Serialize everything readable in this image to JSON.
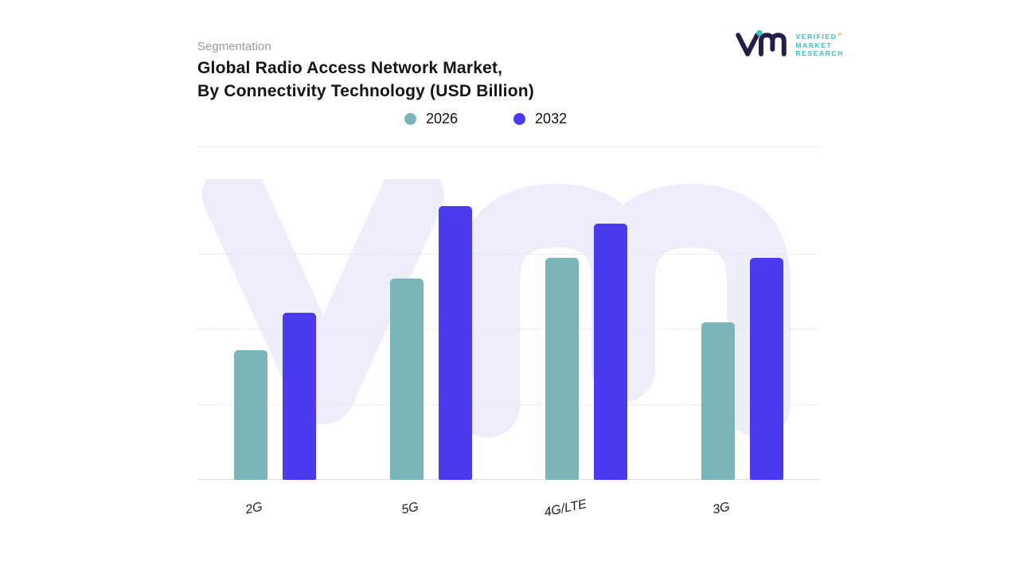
{
  "header": {
    "eyebrow": "Segmentation",
    "title_line1": "Global Radio Access Network Market,",
    "title_line2": "By Connectivity Technology (USD Billion)"
  },
  "logo": {
    "lines": [
      "VERIFIED",
      "MARKET",
      "RESEARCH"
    ],
    "registered": "®",
    "brand_teal": "#38bfc1",
    "brand_navy": "#241d49"
  },
  "legend": [
    {
      "label": "2026",
      "color": "#7ab6b9"
    },
    {
      "label": "2032",
      "color": "#4a3af0"
    }
  ],
  "chart_data": {
    "type": "bar",
    "title": "Global Radio Access Network Market, By Connectivity Technology (USD Billion)",
    "unit": "USD Billion",
    "categories": [
      "2G",
      "5G",
      "4G/LTE",
      "3G"
    ],
    "series": [
      {
        "name": "2026",
        "color": "#7ab6b9",
        "values": [
          38,
          59,
          65,
          46
        ]
      },
      {
        "name": "2032",
        "color": "#4a3af0",
        "values": [
          49,
          80,
          75,
          65
        ]
      }
    ],
    "ylim": [
      0,
      88
    ],
    "grid": "horizontal-dashed",
    "legend_position": "top",
    "y_axis_visible": false
  },
  "watermark": {
    "text": "vm",
    "color": "#edeefa"
  }
}
